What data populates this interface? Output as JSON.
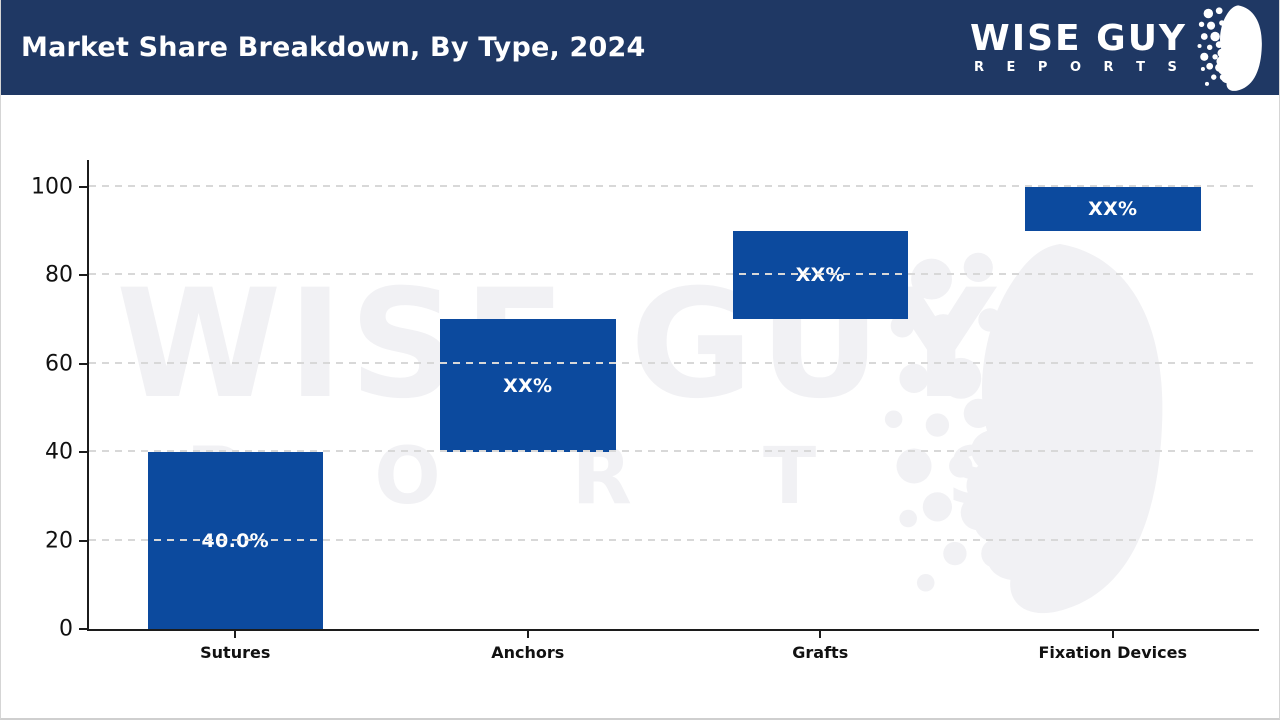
{
  "header": {
    "title": "Market Share Breakdown, By Type, 2024",
    "logo_line1": "WISE GUY",
    "logo_line2": "R E P O R T S",
    "bg_color": "#1f3864"
  },
  "watermark": {
    "line1": "WISE GUY",
    "line2": "P O R T S"
  },
  "chart_data": {
    "type": "bar",
    "subtype": "waterfall",
    "title": "Market Share Breakdown, By Type, 2024",
    "categories": [
      "Sutures",
      "Anchors",
      "Grafts",
      "Fixation Devices"
    ],
    "bars": [
      {
        "category": "Sutures",
        "start": 0,
        "end": 40,
        "value": 40,
        "label": "40.0%"
      },
      {
        "category": "Anchors",
        "start": 40,
        "end": 70,
        "value": 30,
        "label": "XX%"
      },
      {
        "category": "Grafts",
        "start": 70,
        "end": 90,
        "value": 20,
        "label": "XX%"
      },
      {
        "category": "Fixation Devices",
        "start": 90,
        "end": 100,
        "value": 10,
        "label": "XX%"
      }
    ],
    "yticks": [
      0,
      20,
      40,
      60,
      80,
      100
    ],
    "ylim": [
      0,
      106
    ],
    "xlabel": "",
    "ylabel": "",
    "grid": "dashed-horizontal",
    "legend": "none",
    "bar_color": "#0c4a9e",
    "bar_label_color": "#ffffff",
    "axis_color": "#1c1c1c",
    "gridline_color": "#d8d8d8"
  }
}
